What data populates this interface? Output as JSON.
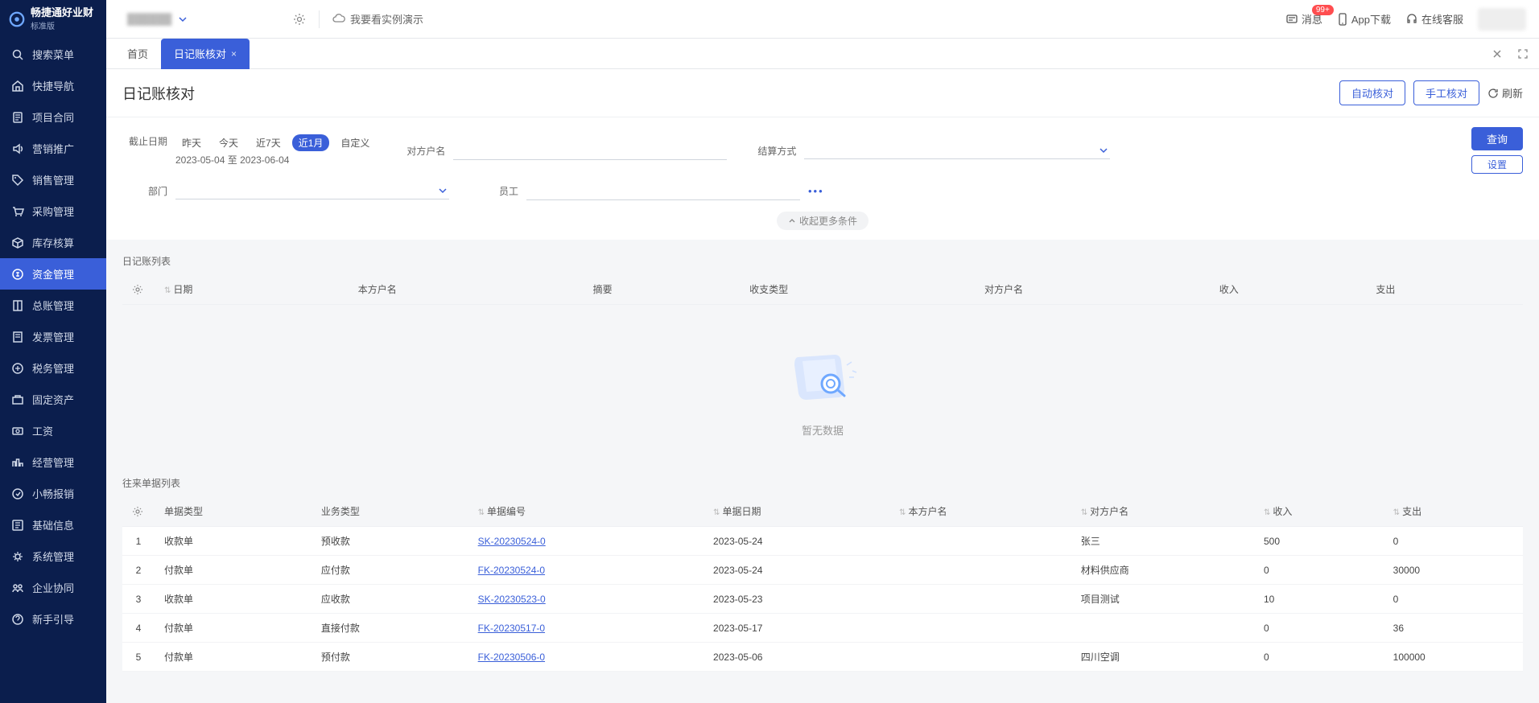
{
  "brand": {
    "name": "畅捷通好业财",
    "edition": "标准版"
  },
  "sidebar": {
    "items": [
      {
        "label": "搜索菜单",
        "icon": "search"
      },
      {
        "label": "快捷导航",
        "icon": "home"
      },
      {
        "label": "项目合同",
        "icon": "file"
      },
      {
        "label": "营销推广",
        "icon": "speaker"
      },
      {
        "label": "销售管理",
        "icon": "tag"
      },
      {
        "label": "采购管理",
        "icon": "cart"
      },
      {
        "label": "库存核算",
        "icon": "box"
      },
      {
        "label": "资金管理",
        "icon": "coin",
        "active": true
      },
      {
        "label": "总账管理",
        "icon": "book"
      },
      {
        "label": "发票管理",
        "icon": "invoice"
      },
      {
        "label": "税务管理",
        "icon": "tax"
      },
      {
        "label": "固定资产",
        "icon": "asset"
      },
      {
        "label": "工资",
        "icon": "salary"
      },
      {
        "label": "经营管理",
        "icon": "biz"
      },
      {
        "label": "小畅报销",
        "icon": "reimburse"
      },
      {
        "label": "基础信息",
        "icon": "info"
      },
      {
        "label": "系统管理",
        "icon": "system"
      },
      {
        "label": "企业协同",
        "icon": "collab"
      },
      {
        "label": "新手引导",
        "icon": "guide"
      }
    ]
  },
  "topbar": {
    "org_placeholder": "██████",
    "demo_label": "我要看实例演示",
    "msg_label": "消息",
    "msg_badge": "99+",
    "app_label": "App下载",
    "service_label": "在线客服"
  },
  "tabs": {
    "home": "首页",
    "current": "日记账核对"
  },
  "page": {
    "title": "日记账核对",
    "auto_check": "自动核对",
    "manual_check": "手工核对",
    "refresh": "刷新"
  },
  "filters": {
    "deadline_label": "截止日期",
    "quick": {
      "yesterday": "昨天",
      "today": "今天",
      "last7": "近7天",
      "last1m": "近1月",
      "custom": "自定义"
    },
    "date_from": "2023-05-04",
    "date_to_sep": "至",
    "date_to": "2023-06-04",
    "counterparty_label": "对方户名",
    "settle_label": "结算方式",
    "dept_label": "部门",
    "staff_label": "员工",
    "query_btn": "查询",
    "setting_btn": "设置",
    "collapse": "收起更多条件"
  },
  "journal": {
    "title": "日记账列表",
    "cols": {
      "date": "日期",
      "our_account": "本方户名",
      "summary": "摘要",
      "io_type": "收支类型",
      "their_account": "对方户名",
      "income": "收入",
      "expense": "支出"
    },
    "empty": "暂无数据"
  },
  "bills": {
    "title": "往来单据列表",
    "cols": {
      "bill_type": "单据类型",
      "biz_type": "业务类型",
      "bill_no": "单据编号",
      "bill_date": "单据日期",
      "our_account": "本方户名",
      "their_account": "对方户名",
      "income": "收入",
      "expense": "支出"
    },
    "rows": [
      {
        "idx": "1",
        "bill_type": "收款单",
        "biz_type": "预收款",
        "bill_no": "SK-20230524-0",
        "bill_date": "2023-05-24",
        "our": "",
        "their": "张三",
        "income": "500",
        "expense": "0"
      },
      {
        "idx": "2",
        "bill_type": "付款单",
        "biz_type": "应付款",
        "bill_no": "FK-20230524-0",
        "bill_date": "2023-05-24",
        "our": "",
        "their": "材料供应商",
        "income": "0",
        "expense": "30000"
      },
      {
        "idx": "3",
        "bill_type": "收款单",
        "biz_type": "应收款",
        "bill_no": "SK-20230523-0",
        "bill_date": "2023-05-23",
        "our": "",
        "their": "项目测试",
        "income": "10",
        "expense": "0"
      },
      {
        "idx": "4",
        "bill_type": "付款单",
        "biz_type": "直接付款",
        "bill_no": "FK-20230517-0",
        "bill_date": "2023-05-17",
        "our": "",
        "their": "",
        "income": "0",
        "expense": "36"
      },
      {
        "idx": "5",
        "bill_type": "付款单",
        "biz_type": "预付款",
        "bill_no": "FK-20230506-0",
        "bill_date": "2023-05-06",
        "our": "",
        "their": "四川空调",
        "income": "0",
        "expense": "100000"
      }
    ]
  }
}
